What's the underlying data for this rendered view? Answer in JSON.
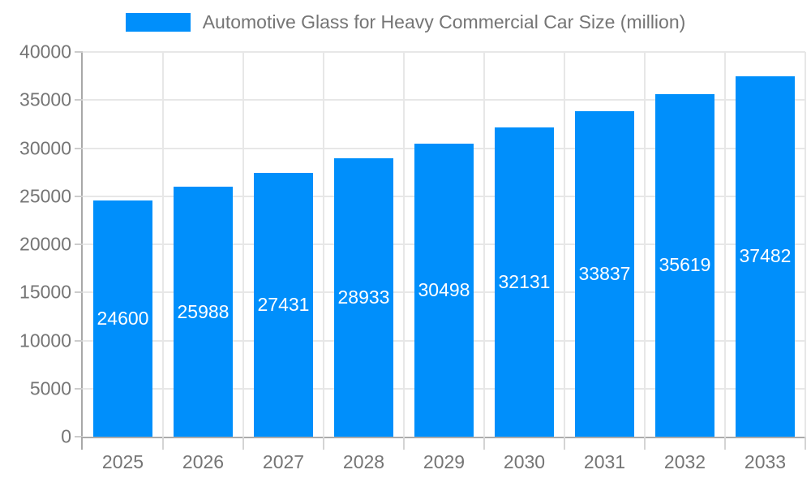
{
  "chart_data": {
    "type": "bar",
    "title": "Automotive Glass for Heavy Commercial Car Size (million)",
    "categories": [
      "2025",
      "2026",
      "2027",
      "2028",
      "2029",
      "2030",
      "2031",
      "2032",
      "2033"
    ],
    "values": [
      24600,
      25988,
      27431,
      28933,
      30498,
      32131,
      33837,
      35619,
      37482
    ],
    "xlabel": "",
    "ylabel": "",
    "ylim": [
      0,
      40000
    ],
    "ytick_step": 5000,
    "yticks": [
      0,
      5000,
      10000,
      15000,
      20000,
      25000,
      30000,
      35000,
      40000
    ],
    "grid": "horizontal and vertical",
    "legend_position": "top",
    "bar_color": "#008FFB",
    "bar_label_color": "#ffffff",
    "axis_text_color": "#757575",
    "gridline_color": "#e7e7e7",
    "axis_line_color": "#ababab"
  }
}
